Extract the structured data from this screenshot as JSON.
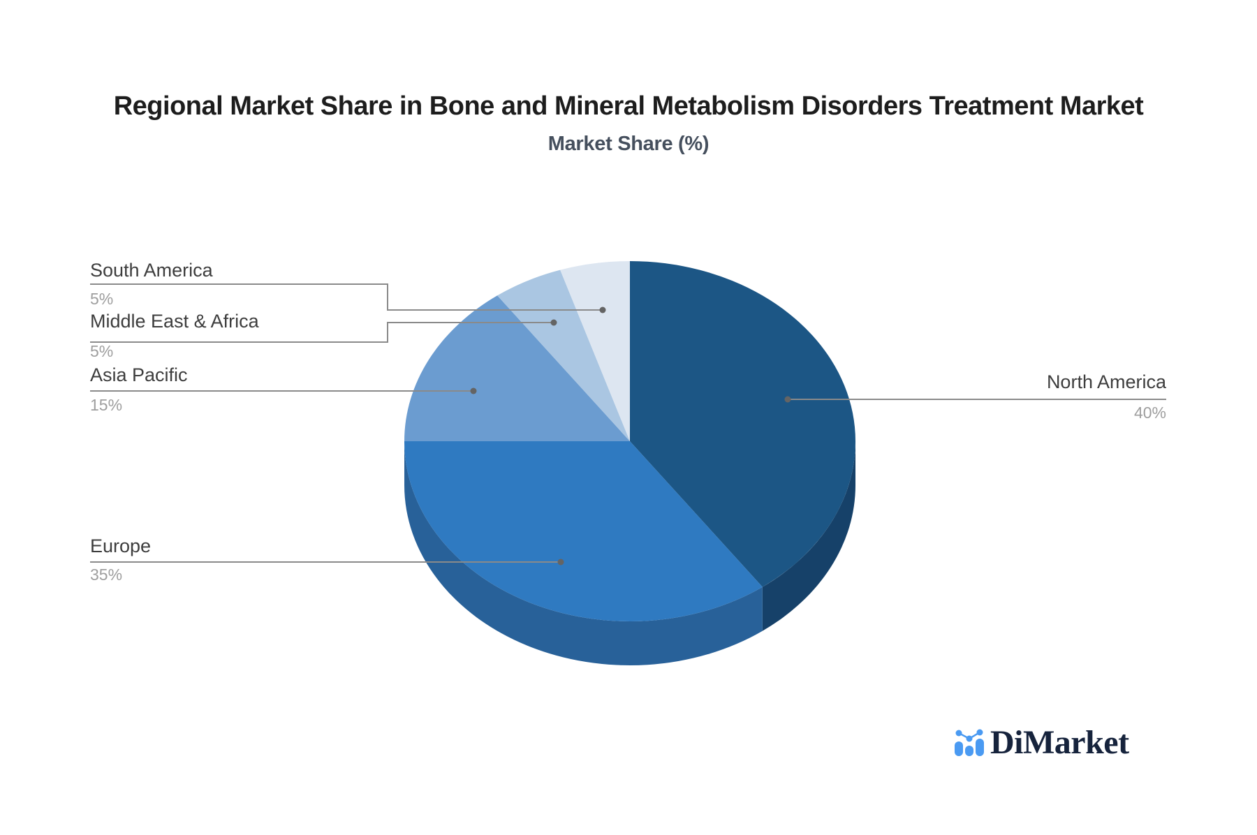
{
  "title": "Regional Market Share in Bone and Mineral Metabolism Disorders Treatment Market",
  "subtitle": "Market Share (%)",
  "chart_data": {
    "type": "pie",
    "title": "Regional Market Share in Bone and Mineral Metabolism Disorders Treatment Market",
    "subtitle": "Market Share (%)",
    "unit": "%",
    "direction": "clockwise",
    "start_angle_deg": 0,
    "effect": "3d-extruded",
    "labels": [
      "North America",
      "Europe",
      "Asia Pacific",
      "Middle East & Africa",
      "South America"
    ],
    "values": [
      40,
      35,
      15,
      5,
      5
    ],
    "colors": [
      "#1c5685",
      "#2f7ac1",
      "#6b9cd0",
      "#aac6e2",
      "#dde6f1"
    ],
    "side_colors": [
      "#164169",
      "#286199",
      null,
      null,
      null
    ],
    "leader_line_color": "#8a8a8a",
    "leader_dot_color": "#646464",
    "label_color": "#3d3d3d",
    "pct_color": "#9e9e9e"
  },
  "callouts": [
    {
      "label": "South America",
      "pct": "5%"
    },
    {
      "label": "Middle East & Africa",
      "pct": "5%"
    },
    {
      "label": "Asia Pacific",
      "pct": "15%"
    },
    {
      "label": "Europe",
      "pct": "35%"
    },
    {
      "label": "North America",
      "pct": "40%"
    }
  ],
  "logo": {
    "text": "DiMarket",
    "icon": "bar-chart-logo-icon",
    "text_color": "#16233c",
    "icon_color": "#4a9af2"
  }
}
